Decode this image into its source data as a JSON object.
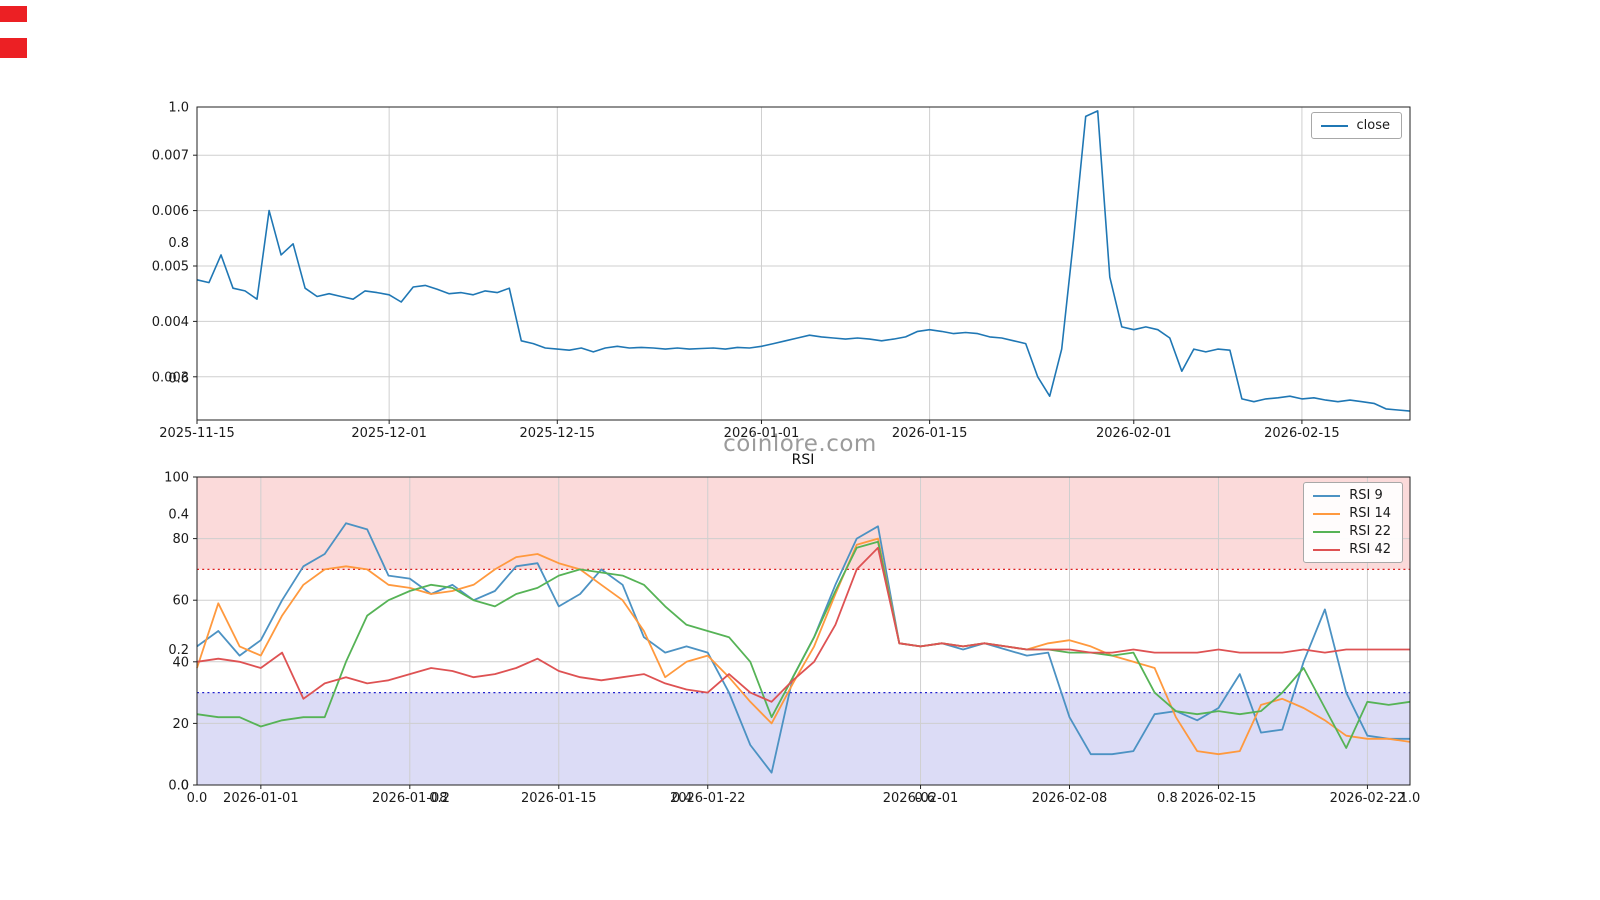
{
  "page": {
    "background": "#ffffff",
    "watermark": "coinlore.com",
    "decorations": {
      "corner_marker_color": "#ec2024"
    }
  },
  "norm_axis": {
    "y_ticks": [
      "1.0",
      "0.8",
      "0.6",
      "0.4",
      "0.2",
      "0.0"
    ]
  },
  "chart_data": [
    {
      "type": "line",
      "panel": "price",
      "title": "",
      "xlabel": "",
      "ylabel": "",
      "grid": true,
      "legend": {
        "position": "top-right",
        "entries": [
          "close"
        ]
      },
      "x_ticks": [
        "2025-11-15",
        "2025-12-01",
        "2025-12-15",
        "2026-01-01",
        "2026-01-15",
        "2026-02-01",
        "2026-02-15"
      ],
      "y_ticks": [
        "0.003",
        "0.004",
        "0.005",
        "0.006",
        "0.007"
      ],
      "ylim": [
        0.00222,
        0.00787
      ],
      "x": [
        "2025-11-15",
        "2025-11-16",
        "2025-11-17",
        "2025-11-18",
        "2025-11-19",
        "2025-11-20",
        "2025-11-21",
        "2025-11-22",
        "2025-11-23",
        "2025-11-24",
        "2025-11-25",
        "2025-11-26",
        "2025-11-27",
        "2025-11-28",
        "2025-11-29",
        "2025-11-30",
        "2025-12-01",
        "2025-12-02",
        "2025-12-03",
        "2025-12-04",
        "2025-12-05",
        "2025-12-06",
        "2025-12-07",
        "2025-12-08",
        "2025-12-09",
        "2025-12-10",
        "2025-12-11",
        "2025-12-12",
        "2025-12-13",
        "2025-12-14",
        "2025-12-15",
        "2025-12-16",
        "2025-12-17",
        "2025-12-18",
        "2025-12-19",
        "2025-12-20",
        "2025-12-21",
        "2025-12-22",
        "2025-12-23",
        "2025-12-24",
        "2025-12-25",
        "2025-12-26",
        "2025-12-27",
        "2025-12-28",
        "2025-12-29",
        "2025-12-30",
        "2025-12-31",
        "2026-01-01",
        "2026-01-02",
        "2026-01-03",
        "2026-01-04",
        "2026-01-05",
        "2026-01-06",
        "2026-01-07",
        "2026-01-08",
        "2026-01-09",
        "2026-01-10",
        "2026-01-11",
        "2026-01-12",
        "2026-01-13",
        "2026-01-14",
        "2026-01-15",
        "2026-01-16",
        "2026-01-17",
        "2026-01-18",
        "2026-01-19",
        "2026-01-20",
        "2026-01-21",
        "2026-01-22",
        "2026-01-23",
        "2026-01-24",
        "2026-01-25",
        "2026-01-26",
        "2026-01-27",
        "2026-01-28",
        "2026-01-29",
        "2026-01-30",
        "2026-01-31",
        "2026-02-01",
        "2026-02-02",
        "2026-02-03",
        "2026-02-04",
        "2026-02-05",
        "2026-02-06",
        "2026-02-07",
        "2026-02-08",
        "2026-02-09",
        "2026-02-10",
        "2026-02-11",
        "2026-02-12",
        "2026-02-13",
        "2026-02-14",
        "2026-02-15",
        "2026-02-16",
        "2026-02-17",
        "2026-02-18",
        "2026-02-19",
        "2026-02-20",
        "2026-02-21",
        "2026-02-22",
        "2026-02-23",
        "2026-02-24"
      ],
      "series": [
        {
          "name": "close",
          "color": "#1f77b4",
          "values": [
            0.00475,
            0.0047,
            0.0052,
            0.0046,
            0.00455,
            0.0044,
            0.006,
            0.0052,
            0.0054,
            0.0046,
            0.00445,
            0.0045,
            0.00445,
            0.0044,
            0.00455,
            0.00452,
            0.00448,
            0.00435,
            0.00462,
            0.00465,
            0.00458,
            0.0045,
            0.00452,
            0.00448,
            0.00455,
            0.00452,
            0.0046,
            0.00365,
            0.0036,
            0.00352,
            0.0035,
            0.00348,
            0.00352,
            0.00345,
            0.00352,
            0.00355,
            0.00352,
            0.00353,
            0.00352,
            0.0035,
            0.00352,
            0.0035,
            0.00351,
            0.00352,
            0.0035,
            0.00353,
            0.00352,
            0.00355,
            0.0036,
            0.00365,
            0.0037,
            0.00375,
            0.00372,
            0.0037,
            0.00368,
            0.0037,
            0.00368,
            0.00365,
            0.00368,
            0.00372,
            0.00382,
            0.00385,
            0.00382,
            0.00378,
            0.0038,
            0.00378,
            0.00372,
            0.0037,
            0.00365,
            0.0036,
            0.003,
            0.00265,
            0.0035,
            0.0055,
            0.0077,
            0.0078,
            0.0048,
            0.0039,
            0.00385,
            0.0039,
            0.00385,
            0.0037,
            0.0031,
            0.0035,
            0.00345,
            0.0035,
            0.00348,
            0.0026,
            0.00255,
            0.0026,
            0.00262,
            0.00265,
            0.0026,
            0.00262,
            0.00258,
            0.00255,
            0.00258,
            0.00255,
            0.00252,
            0.00242,
            0.0024,
            0.00238
          ]
        }
      ]
    },
    {
      "type": "line",
      "panel": "rsi",
      "title": "RSI",
      "xlabel": "",
      "ylabel": "",
      "grid": true,
      "legend": {
        "position": "top-right",
        "entries": [
          "RSI 9",
          "RSI 14",
          "RSI 22",
          "RSI 42"
        ]
      },
      "x_ticks": [
        "2026-01-01",
        "2026-01-08",
        "2026-01-15",
        "2026-01-22",
        "2026-02-01",
        "2026-02-08",
        "2026-02-15",
        "2026-02-22"
      ],
      "x_ticks_norm": [
        "0.0",
        "0.2",
        "0.4",
        "0.6",
        "0.8",
        "1.0"
      ],
      "y_ticks": [
        "0",
        "20",
        "40",
        "60",
        "80",
        "100"
      ],
      "ylim": [
        0,
        100
      ],
      "overbought_level": 70,
      "oversold_level": 30,
      "overbought_band_color": "#fbdada",
      "oversold_band_color": "#dcdcf6",
      "overbought_line_color": "#dd2222",
      "oversold_line_color": "#2222cc",
      "x": [
        "2025-12-29",
        "2025-12-30",
        "2025-12-31",
        "2026-01-01",
        "2026-01-02",
        "2026-01-03",
        "2026-01-04",
        "2026-01-05",
        "2026-01-06",
        "2026-01-07",
        "2026-01-08",
        "2026-01-09",
        "2026-01-10",
        "2026-01-11",
        "2026-01-12",
        "2026-01-13",
        "2026-01-14",
        "2026-01-15",
        "2026-01-16",
        "2026-01-17",
        "2026-01-18",
        "2026-01-19",
        "2026-01-20",
        "2026-01-21",
        "2026-01-22",
        "2026-01-23",
        "2026-01-24",
        "2026-01-25",
        "2026-01-26",
        "2026-01-27",
        "2026-01-28",
        "2026-01-29",
        "2026-01-30",
        "2026-01-31",
        "2026-02-01",
        "2026-02-02",
        "2026-02-03",
        "2026-02-04",
        "2026-02-05",
        "2026-02-06",
        "2026-02-07",
        "2026-02-08",
        "2026-02-09",
        "2026-02-10",
        "2026-02-11",
        "2026-02-12",
        "2026-02-13",
        "2026-02-14",
        "2026-02-15",
        "2026-02-16",
        "2026-02-17",
        "2026-02-18",
        "2026-02-19",
        "2026-02-20",
        "2026-02-21",
        "2026-02-22",
        "2026-02-23",
        "2026-02-24"
      ],
      "series": [
        {
          "name": "RSI 9",
          "color": "#4c92c3",
          "values": [
            45,
            50,
            42,
            47,
            60,
            71,
            75,
            85,
            83,
            68,
            67,
            62,
            65,
            60,
            63,
            71,
            72,
            58,
            62,
            70,
            65,
            48,
            43,
            45,
            43,
            30,
            13,
            4,
            35,
            48,
            65,
            80,
            84,
            46,
            45,
            46,
            44,
            46,
            44,
            42,
            43,
            22,
            10,
            10,
            11,
            23,
            24,
            21,
            25,
            36,
            17,
            18,
            40,
            57,
            30,
            16,
            15,
            15
          ]
        },
        {
          "name": "RSI 14",
          "color": "#ff993e",
          "values": [
            38,
            59,
            45,
            42,
            55,
            65,
            70,
            71,
            70,
            65,
            64,
            62,
            63,
            65,
            70,
            74,
            75,
            72,
            70,
            65,
            60,
            50,
            35,
            40,
            42,
            35,
            27,
            20,
            33,
            45,
            62,
            78,
            80,
            46,
            45,
            46,
            45,
            46,
            45,
            44,
            46,
            47,
            45,
            42,
            40,
            38,
            22,
            11,
            10,
            11,
            26,
            28,
            25,
            21,
            16,
            15,
            15,
            14
          ]
        },
        {
          "name": "RSI 22",
          "color": "#56b356",
          "values": [
            23,
            22,
            22,
            19,
            21,
            22,
            22,
            40,
            55,
            60,
            63,
            65,
            64,
            60,
            58,
            62,
            64,
            68,
            70,
            69,
            68,
            65,
            58,
            52,
            50,
            48,
            40,
            22,
            35,
            48,
            63,
            77,
            79,
            46,
            45,
            46,
            45,
            46,
            45,
            44,
            44,
            43,
            43,
            42,
            43,
            30,
            24,
            23,
            24,
            23,
            24,
            30,
            38,
            25,
            12,
            27,
            26,
            27
          ]
        },
        {
          "name": "RSI 42",
          "color": "#de5253",
          "values": [
            40,
            41,
            40,
            38,
            43,
            28,
            33,
            35,
            33,
            34,
            36,
            38,
            37,
            35,
            36,
            38,
            41,
            37,
            35,
            34,
            35,
            36,
            33,
            31,
            30,
            36,
            30,
            27,
            34,
            40,
            52,
            70,
            77,
            46,
            45,
            46,
            45,
            46,
            45,
            44,
            44,
            44,
            43,
            43,
            44,
            43,
            43,
            43,
            44,
            43,
            43,
            43,
            44,
            43,
            44,
            44,
            44,
            44
          ]
        }
      ]
    }
  ]
}
